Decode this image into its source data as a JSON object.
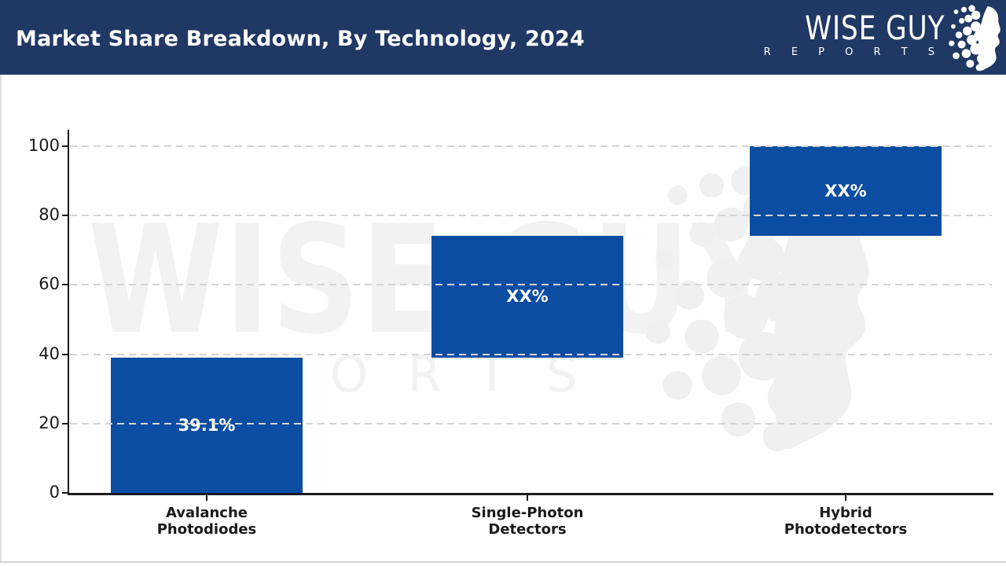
{
  "header": {
    "title": "Market Share Breakdown, By Technology, 2024",
    "logo": {
      "wordmark": "WISE GUY",
      "subtext": "R E P O R T S"
    }
  },
  "watermark": {
    "wordmark": "WISE GUY",
    "subtext": "REPORTS"
  },
  "chart_data": {
    "type": "bar",
    "variant": "stacked-waterfall-segments",
    "title": "Market Share Breakdown, By Technology, 2024",
    "categories": [
      "Avalanche Photodiodes",
      "Single-Photon Detectors",
      "Hybrid Photodetectors"
    ],
    "category_lines": [
      [
        "Avalanche",
        "Photodiodes"
      ],
      [
        "Single-Photon",
        "Detectors"
      ],
      [
        "Hybrid",
        "Photodetectors"
      ]
    ],
    "segments": [
      {
        "category": "Avalanche Photodiodes",
        "start": 0,
        "end": 39.1,
        "label": "39.1%"
      },
      {
        "category": "Single-Photon Detectors",
        "start": 39.1,
        "end": 74.1,
        "label": "XX%"
      },
      {
        "category": "Hybrid Photodetectors",
        "start": 74.1,
        "end": 100,
        "label": "XX%"
      }
    ],
    "xlabel": "",
    "ylabel": "",
    "yticks": [
      0,
      20,
      40,
      60,
      80,
      100
    ],
    "ylim": [
      0,
      105
    ],
    "grid": {
      "axis": "y",
      "style": "dashed",
      "color": "#d9d9d9",
      "above_bars": true
    },
    "legend": "none",
    "bar_color": "#0b4da2",
    "bar_label_color": "#ffffff"
  },
  "colors": {
    "header_bg": "#203864",
    "bar": "#0b4da2",
    "axis_text": "#1a1a1a",
    "grid": "#d9d9d9",
    "watermark": "#f2f2f2",
    "text_on_dark": "#ffffff",
    "bottom_rule": "#d6d6d6"
  }
}
